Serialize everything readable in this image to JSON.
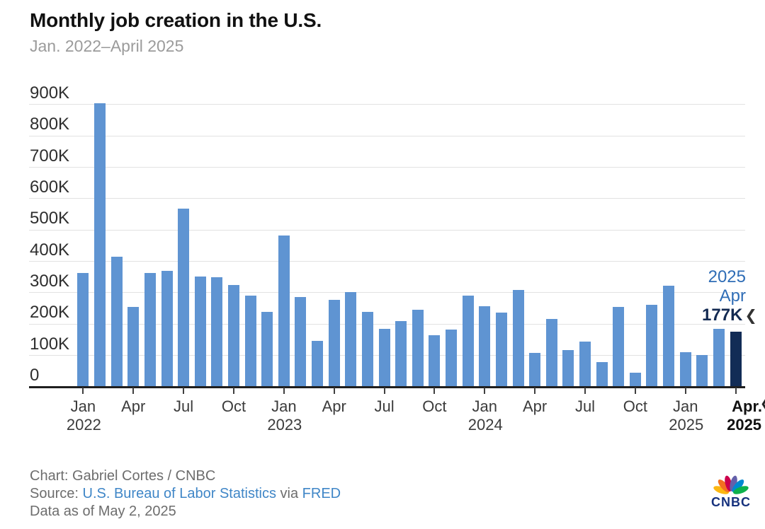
{
  "header": {
    "title": "Monthly job creation in the U.S.",
    "subtitle": "Jan. 2022–April 2025"
  },
  "chart_data": {
    "type": "bar",
    "title": "Monthly job creation in the U.S.",
    "subtitle": "Jan. 2022–April 2025",
    "unit": "thousands of jobs (K)",
    "ylim": [
      0,
      900
    ],
    "grid": true,
    "y_ticks": [
      {
        "value": 900,
        "label": "900K"
      },
      {
        "value": 800,
        "label": "800K"
      },
      {
        "value": 700,
        "label": "700K"
      },
      {
        "value": 600,
        "label": "600K"
      },
      {
        "value": 500,
        "label": "500K"
      },
      {
        "value": 400,
        "label": "400K"
      },
      {
        "value": 300,
        "label": "300K"
      },
      {
        "value": 200,
        "label": "200K"
      },
      {
        "value": 100,
        "label": "100K"
      },
      {
        "value": 0,
        "label": "0"
      }
    ],
    "categories": [
      "Jan 2022",
      "Feb 2022",
      "Mar 2022",
      "Apr 2022",
      "May 2022",
      "Jun 2022",
      "Jul 2022",
      "Aug 2022",
      "Sep 2022",
      "Oct 2022",
      "Nov 2022",
      "Dec 2022",
      "Jan 2023",
      "Feb 2023",
      "Mar 2023",
      "Apr 2023",
      "May 2023",
      "Jun 2023",
      "Jul 2023",
      "Aug 2023",
      "Sep 2023",
      "Oct 2023",
      "Nov 2023",
      "Dec 2023",
      "Jan 2024",
      "Feb 2024",
      "Mar 2024",
      "Apr 2024",
      "May 2024",
      "Jun 2024",
      "Jul 2024",
      "Aug 2024",
      "Sep 2024",
      "Oct 2024",
      "Nov 2024",
      "Dec 2024",
      "Jan 2025",
      "Feb 2025",
      "Mar 2025",
      "Apr 2025"
    ],
    "values": [
      364,
      904,
      414,
      254,
      364,
      370,
      568,
      352,
      350,
      324,
      290,
      239,
      482,
      287,
      146,
      278,
      303,
      240,
      184,
      210,
      246,
      165,
      182,
      290,
      256,
      236,
      310,
      108,
      216,
      118,
      144,
      78,
      255,
      44,
      261,
      323,
      111,
      102,
      185,
      177
    ],
    "highlight_index": 39,
    "x_ticks": [
      {
        "index": 0,
        "month": "Jan",
        "year": "2022",
        "bold": false
      },
      {
        "index": 3,
        "month": "Apr",
        "year": "",
        "bold": false
      },
      {
        "index": 6,
        "month": "Jul",
        "year": "",
        "bold": false
      },
      {
        "index": 9,
        "month": "Oct",
        "year": "",
        "bold": false
      },
      {
        "index": 12,
        "month": "Jan",
        "year": "2023",
        "bold": false
      },
      {
        "index": 15,
        "month": "Apr",
        "year": "",
        "bold": false
      },
      {
        "index": 18,
        "month": "Jul",
        "year": "",
        "bold": false
      },
      {
        "index": 21,
        "month": "Oct",
        "year": "",
        "bold": false
      },
      {
        "index": 24,
        "month": "Jan",
        "year": "2024",
        "bold": false
      },
      {
        "index": 27,
        "month": "Apr",
        "year": "",
        "bold": false
      },
      {
        "index": 30,
        "month": "Jul",
        "year": "",
        "bold": false
      },
      {
        "index": 33,
        "month": "Oct",
        "year": "",
        "bold": false
      },
      {
        "index": 36,
        "month": "Jan",
        "year": "2025",
        "bold": false
      },
      {
        "index": 39,
        "month": "Apr.",
        "year": "2025",
        "bold": true
      }
    ],
    "annotation": {
      "year": "2025",
      "month": "Apr",
      "value": "177K",
      "caret": "❮"
    },
    "colors": {
      "bar": "#5f94d2",
      "highlight": "#122c56",
      "gridline": "#e2e2e2",
      "axis": "#1f1f1f",
      "annotation_blue": "#2f6db6",
      "annotation_navy": "#132a52"
    }
  },
  "footer": {
    "credit": "Chart: Gabriel Cortes / CNBC",
    "source_prefix": "Source:",
    "source_link1": "U.S. Bureau of Labor Statistics",
    "via": "via",
    "source_link2": "FRED",
    "data_as_of": "Data as of May 2, 2025",
    "link_color": "#3f86c7"
  },
  "logo": {
    "label": "CNBC",
    "wordmark_color": "#16317d",
    "peacock_colors": [
      "#FCB711",
      "#F37021",
      "#CC004C",
      "#6460AA",
      "#0089D0",
      "#0DB14B"
    ]
  }
}
